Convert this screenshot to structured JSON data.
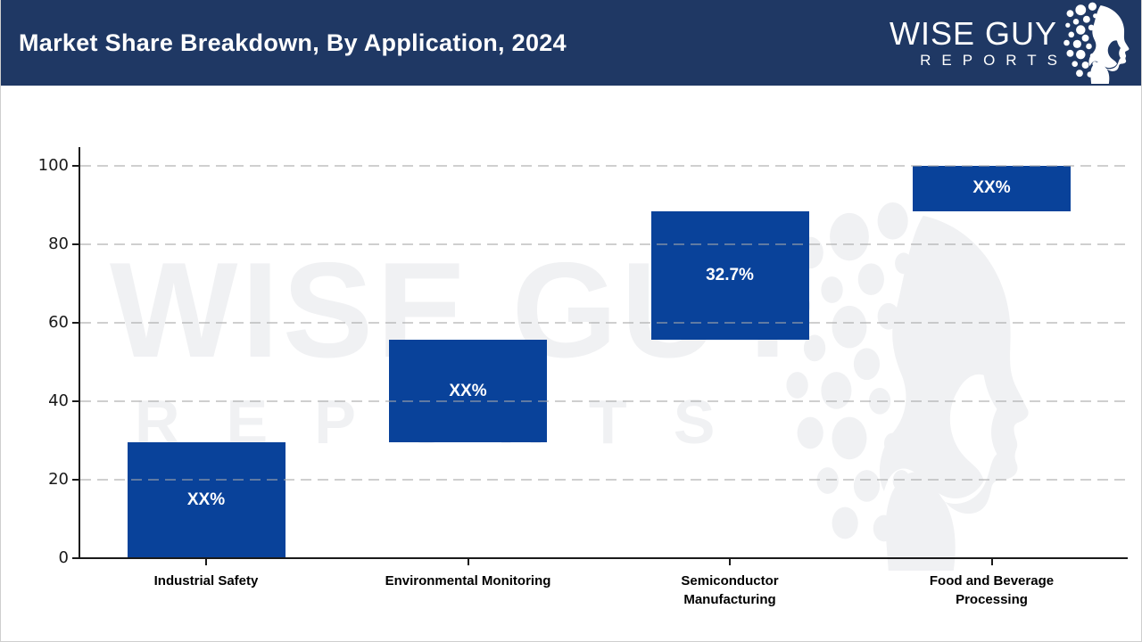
{
  "header": {
    "title": "Market Share Breakdown, By Application, 2024",
    "logo": {
      "line1": "WISE GUY",
      "line2": "REPORTS"
    }
  },
  "watermark": {
    "line1": "WISE GUY",
    "line2": "REPORTS"
  },
  "chart_data": {
    "type": "bar",
    "subtype": "waterfall",
    "title": "Market Share Breakdown, By Application, 2024",
    "categories": [
      "Industrial Safety",
      "Environmental Monitoring",
      "Semiconductor Manufacturing",
      "Food and Beverage Processing"
    ],
    "series": [
      {
        "name": "Market Share",
        "segments": [
          {
            "category": "Industrial Safety",
            "start": 0,
            "end": 29.5,
            "value": 29.5,
            "label": "XX%"
          },
          {
            "category": "Environmental Monitoring",
            "start": 29.5,
            "end": 55.6,
            "value": 26.1,
            "label": "XX%"
          },
          {
            "category": "Semiconductor Manufacturing",
            "start": 55.6,
            "end": 88.3,
            "value": 32.7,
            "label": "32.7%"
          },
          {
            "category": "Food and Beverage Processing",
            "start": 88.3,
            "end": 100,
            "value": 11.7,
            "label": "XX%"
          }
        ]
      }
    ],
    "xlabel": "",
    "ylabel": "",
    "ylim": [
      0,
      105
    ],
    "yticks": [
      0,
      20,
      40,
      60,
      80,
      100
    ],
    "grid": "horizontal-dashed",
    "legend": "none",
    "bar_color": "#09429a",
    "bar_label_color": "#ffffff",
    "axis_color": "#1a1a1a",
    "header_bg": "#1f3864",
    "watermark_color": "#f0f1f3"
  }
}
